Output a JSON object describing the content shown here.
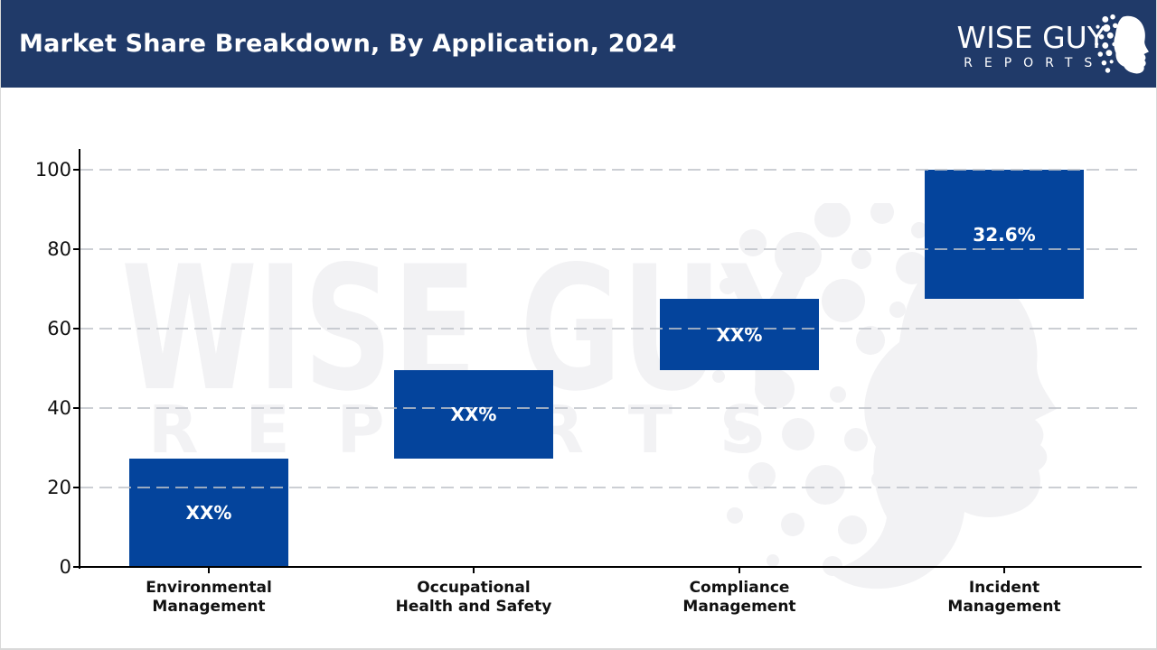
{
  "header": {
    "title": "Market Share Breakdown, By Application, 2024",
    "brand": {
      "name": "WISE GUY",
      "sub": "REPORTS"
    }
  },
  "watermark": {
    "name": "WISE GUY",
    "sub": "REPORTS"
  },
  "colors": {
    "header_bg": "#203a69",
    "bar": "#04449c",
    "bar_label": "#ffffff",
    "axis": "#000000",
    "grid": "#bfc3c9",
    "watermark": "#f2f2f4",
    "border": "#d9d9d9"
  },
  "chart_data": {
    "type": "bar",
    "variant": "waterfall",
    "title": "Market Share Breakdown, By Application, 2024",
    "xlabel": "",
    "ylabel": "",
    "unit": "%",
    "ylim": [
      0,
      100
    ],
    "yticks": [
      0,
      20,
      40,
      60,
      80,
      100
    ],
    "grid": "horizontal-dashed-over-bars",
    "legend": "none",
    "bars": [
      {
        "category": [
          "Environmental",
          "Management"
        ],
        "start": 0,
        "end": 27.3,
        "label": "XX%"
      },
      {
        "category": [
          "Occupational",
          "Health and Safety"
        ],
        "start": 27.3,
        "end": 49.5,
        "label": "XX%"
      },
      {
        "category": [
          "Compliance",
          "Management"
        ],
        "start": 49.5,
        "end": 67.4,
        "label": "XX%"
      },
      {
        "category": [
          "Incident",
          "Management"
        ],
        "start": 67.4,
        "end": 100,
        "label": "32.6%"
      }
    ]
  }
}
